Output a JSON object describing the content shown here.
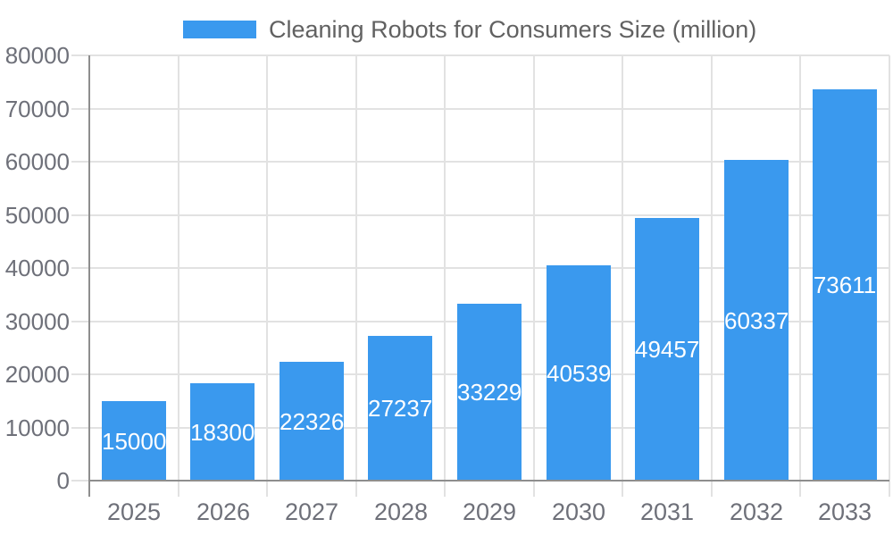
{
  "legend": {
    "label": "Cleaning Robots for Consumers Size (million)"
  },
  "chart_data": {
    "type": "bar",
    "title": "Cleaning Robots for Consumers Size (million)",
    "categories": [
      "2025",
      "2026",
      "2027",
      "2028",
      "2029",
      "2030",
      "2031",
      "2032",
      "2033"
    ],
    "values": [
      15000,
      18300,
      22326,
      27237,
      33229,
      40539,
      49457,
      60337,
      73611
    ],
    "xlabel": "",
    "ylabel": "",
    "ylim": [
      0,
      80000
    ],
    "ytick_step": 10000,
    "yticks": [
      0,
      10000,
      20000,
      30000,
      40000,
      50000,
      60000,
      70000,
      80000
    ],
    "grid": true,
    "legend_position": "top",
    "colors": {
      "bar": "#3A99EE",
      "grid": "#E2E2E2",
      "axis": "#8E8E8E",
      "tick_label": "#6E7079",
      "legend_text": "#616161",
      "value_label": "#FFFFFF",
      "background": "#FFFFFF"
    }
  }
}
